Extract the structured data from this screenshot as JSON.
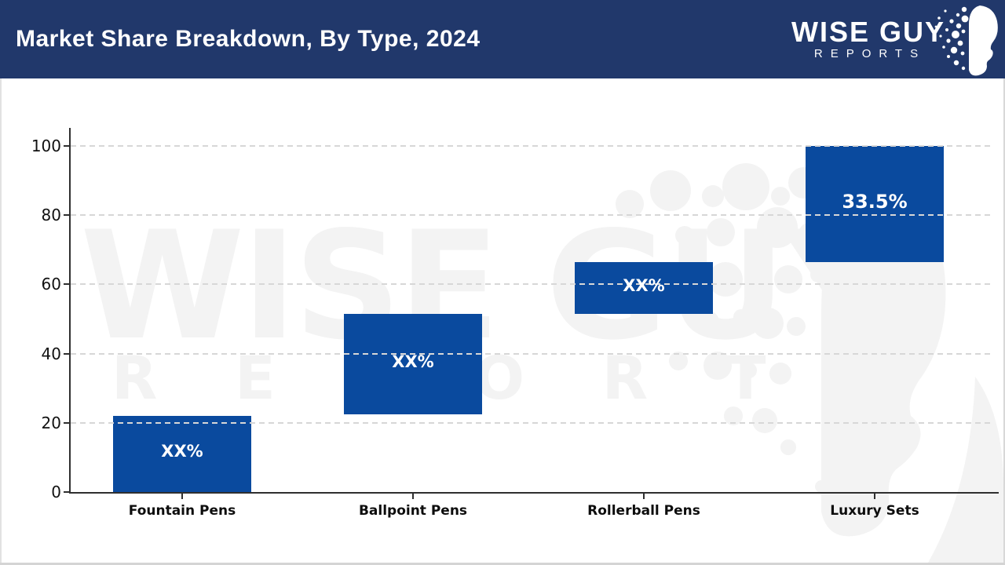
{
  "header": {
    "title": "Market Share Breakdown, By Type, 2024",
    "logo": {
      "line1": "WISE GUY",
      "line2": "REPORTS"
    }
  },
  "watermark": {
    "line1": "WISE GUY",
    "line2": "R E P O R T S"
  },
  "chart_data": {
    "type": "bar",
    "subtype": "floating-waterfall",
    "title": "Market Share Breakdown, By Type, 2024",
    "categories": [
      "Fountain Pens",
      "Ballpoint Pens",
      "Rollerball Pens",
      "Luxury Sets"
    ],
    "series": [
      {
        "name": "Market share (%)",
        "ranges": [
          [
            0,
            22
          ],
          [
            22.5,
            51.5
          ],
          [
            51.5,
            66.5
          ],
          [
            66.5,
            100
          ]
        ],
        "bar_labels": [
          "XX%",
          "XX%",
          "XX%",
          "33.5%"
        ]
      }
    ],
    "xlabel": "",
    "ylabel": "",
    "ylim": [
      0,
      100
    ],
    "yticks": [
      0,
      20,
      40,
      60,
      80,
      100
    ],
    "grid": "horizontal-dashed",
    "grid_on_top_of_bars": true,
    "legend": "none",
    "colors": {
      "bar": "#0a4a9e",
      "bar_label": "#ffffff",
      "header_bg": "#21386b",
      "header_text": "#ffffff",
      "grid": "#d7d7d7",
      "axis": "#2f2f2f",
      "watermark": "#f3f3f3"
    }
  }
}
